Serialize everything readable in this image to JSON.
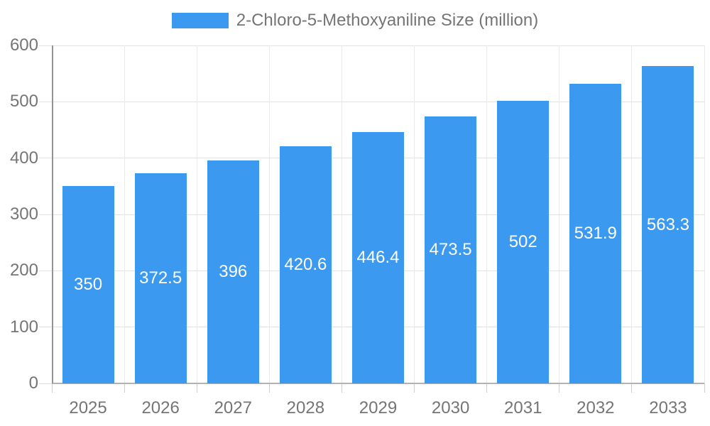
{
  "legend": {
    "label": "2-Chloro-5-Methoxyaniline Size (million)"
  },
  "chart_data": {
    "type": "bar",
    "title": "",
    "xlabel": "",
    "ylabel": "",
    "categories": [
      "2025",
      "2026",
      "2027",
      "2028",
      "2029",
      "2030",
      "2031",
      "2032",
      "2033"
    ],
    "series": [
      {
        "name": "2-Chloro-5-Methoxyaniline Size (million)",
        "values": [
          350,
          372.5,
          396,
          420.6,
          446.4,
          473.5,
          502,
          531.9,
          563.3
        ]
      }
    ],
    "value_labels": [
      "350",
      "372.5",
      "396",
      "420.6",
      "446.4",
      "473.5",
      "502",
      "531.9",
      "563.3"
    ],
    "ylim": [
      0,
      600
    ],
    "yticks": [
      0,
      100,
      200,
      300,
      400,
      500,
      600
    ],
    "grid": true,
    "legend_position": "top",
    "colors": {
      "bar": "#3B99F0",
      "value_label": "#ffffff",
      "axis_text": "#757575",
      "y_axis_line": "#949494",
      "x_axis_line": "#b2b2b2",
      "gridline": "#e2e2e2"
    }
  }
}
